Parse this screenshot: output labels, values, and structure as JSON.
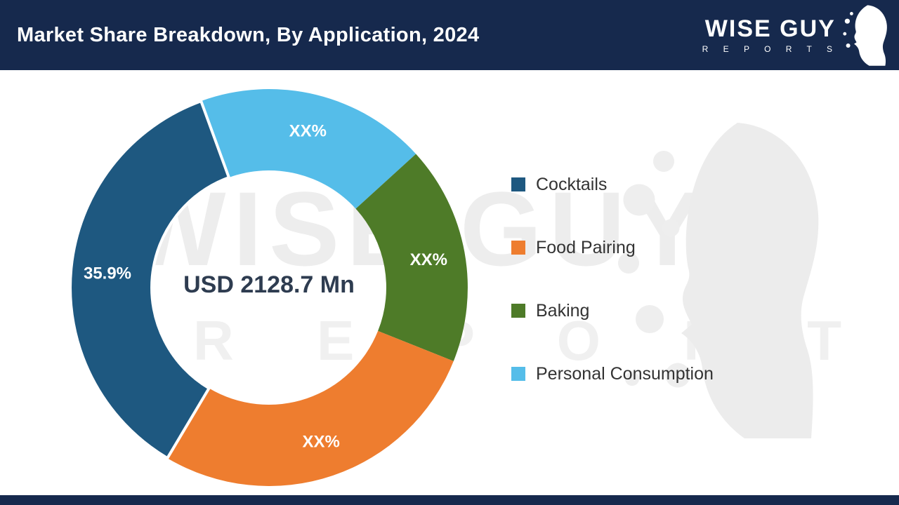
{
  "header": {
    "title": "Market Share Breakdown, By Application, 2024",
    "logo": {
      "line1": "WISE GUY",
      "line2": "R E P O R T S"
    }
  },
  "watermark": {
    "line1": "WISE GUY",
    "line2": "R E P O R T S"
  },
  "chart_data": {
    "type": "donut",
    "title": "Market Share Breakdown, By Application, 2024",
    "center_label": "USD 2128.7 Mn",
    "start_angle_deg": 340,
    "inner_radius_ratio": 0.59,
    "segments": [
      {
        "name": "Personal Consumption",
        "label": "XX%",
        "value_pct": 18.8,
        "color": "#55bde9"
      },
      {
        "name": "Baking",
        "label": "XX%",
        "value_pct": 17.8,
        "color": "#4e7b28"
      },
      {
        "name": "Food Pairing",
        "label": "XX%",
        "value_pct": 27.5,
        "color": "#ee7d2f"
      },
      {
        "name": "Cocktails",
        "label": "35.9%",
        "value_pct": 35.9,
        "color": "#1e5880",
        "white_outline": true
      }
    ],
    "legend_order": [
      "Cocktails",
      "Food Pairing",
      "Baking",
      "Personal Consumption"
    ],
    "legend_position": "right"
  },
  "colors": {
    "header_bg": "#16294d",
    "footer_bg": "#16294d",
    "center_label_color": "#2e3c50",
    "watermark": "#ededed"
  }
}
